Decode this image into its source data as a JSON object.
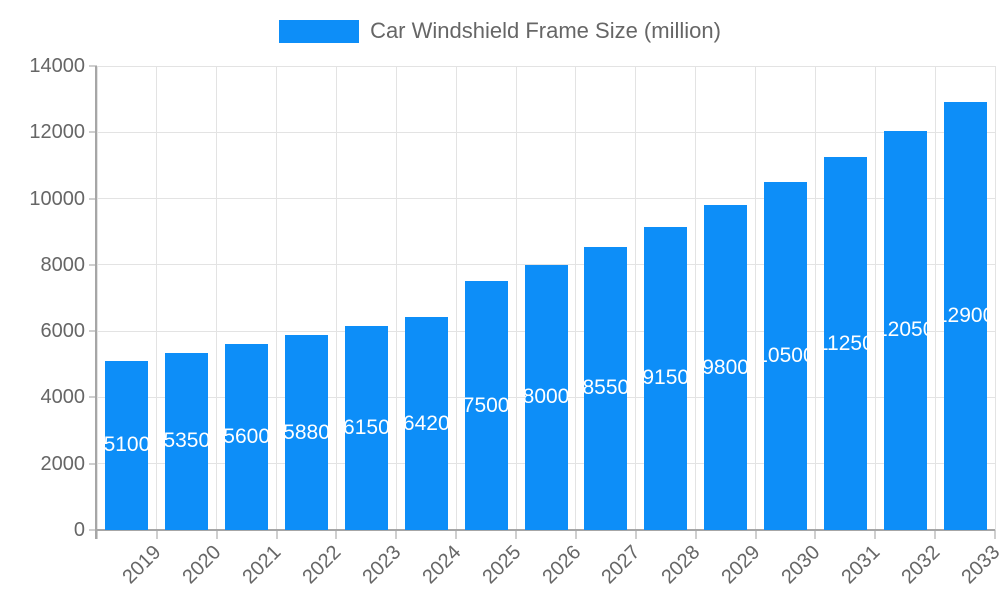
{
  "legend": {
    "position": "top",
    "items": [
      {
        "label": "Car Windshield Frame Size (million)",
        "color": "#0d8ef8"
      }
    ]
  },
  "chart_data": {
    "type": "bar",
    "title": "",
    "xlabel": "",
    "ylabel": "",
    "categories": [
      "2019",
      "2020",
      "2021",
      "2022",
      "2023",
      "2024",
      "2025",
      "2026",
      "2027",
      "2028",
      "2029",
      "2030",
      "2031",
      "2032",
      "2033"
    ],
    "series": [
      {
        "name": "Car Windshield Frame Size (million)",
        "color": "#0d8ef8",
        "values": [
          5100,
          5350,
          5600,
          5880,
          6150,
          6420,
          7500,
          8000,
          8550,
          9150,
          9800,
          10500,
          11250,
          12050,
          12900
        ]
      }
    ],
    "ylim": [
      0,
      14000
    ],
    "y_ticks": [
      0,
      2000,
      4000,
      6000,
      8000,
      10000,
      12000,
      14000
    ],
    "x_tick_rotation_deg": -45,
    "grid": true,
    "legend_position": "top",
    "value_labels": {
      "show": true,
      "position": "center-inside-bar",
      "color": "#ffffff",
      "clipped_to_bar_width": true
    }
  },
  "style": {
    "bar_color": "#0d8ef8",
    "grid_color": "#e3e3e3",
    "tick_color": "#cfcfcf",
    "axis_color": "#a6a6a6",
    "text_color": "#666666",
    "value_label_color": "#ffffff",
    "background": "#ffffff"
  }
}
